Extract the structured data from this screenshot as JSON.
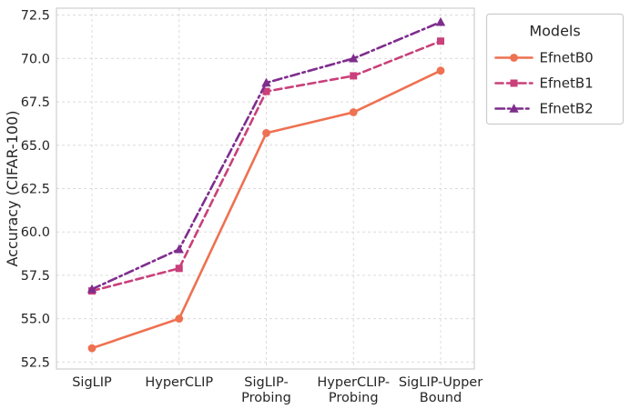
{
  "chart_data": {
    "type": "line",
    "title": "",
    "xlabel": "",
    "ylabel": "Accuracy (CIFAR-100)",
    "categories": [
      "SigLIP",
      "HyperCLIP",
      "SigLIP-\nProbing",
      "HyperCLIP-\nProbing",
      "SigLIP-Upper\nBound"
    ],
    "y_ticks": [
      52.5,
      55.0,
      57.5,
      60.0,
      62.5,
      65.0,
      67.5,
      70.0,
      72.5
    ],
    "ylim": [
      52.1,
      72.9
    ],
    "grid": true,
    "legend": {
      "title": "Models",
      "position": "upper-right-outside"
    },
    "series": [
      {
        "name": "EfnetB0",
        "values": [
          53.3,
          55.0,
          65.7,
          66.9,
          69.3
        ],
        "color": "#ee7151",
        "linestyle": "solid",
        "marker": "circle"
      },
      {
        "name": "EfnetB1",
        "values": [
          56.6,
          57.9,
          68.1,
          69.0,
          71.0
        ],
        "color": "#c9407a",
        "linestyle": "dashed",
        "marker": "square"
      },
      {
        "name": "EfnetB2",
        "values": [
          56.7,
          59.0,
          68.6,
          70.0,
          72.1
        ],
        "color": "#7f2d8d",
        "linestyle": "dashdot",
        "marker": "triangle"
      }
    ],
    "colors": {
      "grid": "#dcdcdc",
      "spine": "#cfcfcf",
      "text": "#262626",
      "legend_border": "#cccccc",
      "background": "#ffffff"
    }
  }
}
